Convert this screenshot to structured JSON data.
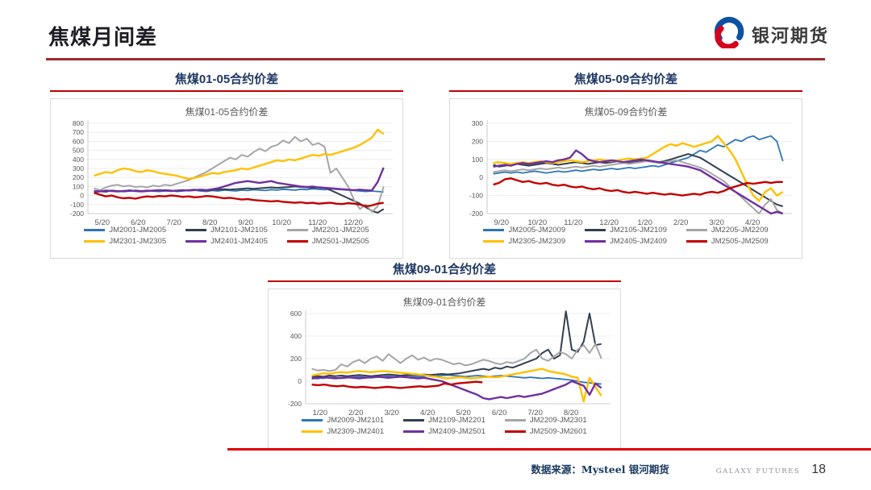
{
  "slide": {
    "title": "焦煤月间差",
    "logo_text": "银河期货",
    "footer": {
      "source": "数据来源：Mysteel 银河期货",
      "brand": "GALAXY FUTURES",
      "page": "18"
    },
    "colors": {
      "accent_red": "#c00000",
      "title_underline": "#9e2b2b",
      "footer_line": "#e00000",
      "header_navy": "#1f3864",
      "logo_blue": "#0c52a2",
      "logo_red": "#d6001c"
    }
  },
  "chart_data": [
    {
      "type": "line",
      "header": "焦煤01-05合约价差",
      "inner_title": "焦煤01-05合约价差",
      "x_ticks": [
        "5/20",
        "6/20",
        "7/20",
        "8/20",
        "9/20",
        "10/20",
        "11/20",
        "12/20"
      ],
      "y_min": -200,
      "y_max": 800,
      "y_step": 100,
      "grid": true,
      "legend_position": "bottom",
      "series": [
        {
          "name": "JM2001-JM2005",
          "color": "#2e75b6",
          "values": [
            30,
            45,
            40,
            55,
            50,
            45,
            60,
            50,
            45,
            55,
            50,
            45,
            50,
            55,
            45,
            50,
            55,
            60,
            50,
            45,
            55,
            50,
            60,
            55,
            50,
            60,
            55,
            65,
            60,
            55,
            65,
            60,
            70,
            65,
            60,
            70,
            65,
            75,
            70,
            65,
            75,
            70,
            65,
            60,
            55,
            50,
            45,
            50,
            45,
            40
          ]
        },
        {
          "name": "JM2101-JM2105",
          "color": "#333f50",
          "values": [
            40,
            50,
            45,
            55,
            50,
            45,
            50,
            55,
            50,
            55,
            50,
            55,
            60,
            55,
            50,
            55,
            60,
            65,
            60,
            55,
            60,
            65,
            70,
            65,
            70,
            75,
            80,
            75,
            80,
            85,
            90,
            85,
            90,
            95,
            100,
            95,
            90,
            85,
            90,
            85,
            60,
            30,
            0,
            -30,
            -60,
            -90,
            -130,
            -170,
            -190,
            -150
          ]
        },
        {
          "name": "JM2201-JM2205",
          "color": "#a6a6a6",
          "values": [
            80,
            60,
            90,
            110,
            120,
            100,
            110,
            95,
            100,
            90,
            110,
            100,
            120,
            110,
            130,
            150,
            170,
            200,
            230,
            260,
            300,
            340,
            380,
            420,
            400,
            450,
            430,
            480,
            520,
            490,
            540,
            560,
            610,
            580,
            650,
            600,
            630,
            560,
            580,
            540,
            250,
            300,
            200,
            100,
            -50,
            -150,
            -100,
            -180,
            -120,
            100
          ]
        },
        {
          "name": "JM2301-JM2305",
          "color": "#ffc000",
          "values": [
            220,
            240,
            260,
            250,
            280,
            300,
            290,
            270,
            260,
            280,
            270,
            250,
            240,
            230,
            220,
            200,
            185,
            195,
            210,
            230,
            250,
            240,
            260,
            270,
            280,
            300,
            290,
            310,
            330,
            350,
            370,
            390,
            380,
            400,
            390,
            410,
            430,
            450,
            440,
            460,
            450,
            470,
            490,
            510,
            530,
            560,
            600,
            640,
            730,
            680
          ]
        },
        {
          "name": "JM2401-JM2405",
          "color": "#7030a0",
          "values": [
            50,
            45,
            55,
            50,
            45,
            50,
            55,
            50,
            45,
            50,
            55,
            60,
            55,
            50,
            55,
            60,
            55,
            60,
            65,
            60,
            70,
            80,
            100,
            120,
            140,
            150,
            160,
            150,
            140,
            150,
            160,
            140,
            130,
            120,
            110,
            100,
            95,
            100,
            90,
            85,
            80,
            75,
            70,
            65,
            60,
            65,
            60,
            55,
            150,
            310
          ]
        },
        {
          "name": "JM2501-JM2505",
          "color": "#c00000",
          "values": [
            30,
            10,
            -10,
            0,
            -20,
            -30,
            -25,
            -35,
            -20,
            -10,
            -15,
            -5,
            -10,
            0,
            -5,
            -15,
            -10,
            -20,
            -15,
            -5,
            -10,
            -20,
            -30,
            -25,
            -35,
            -45,
            -40,
            -50,
            -55,
            -60,
            -65,
            -60,
            -70,
            -75,
            -80,
            -75,
            -85,
            -80,
            -90,
            -85,
            -80,
            -90,
            -95,
            -85,
            -90,
            -100,
            -120,
            -110,
            -90,
            -80
          ]
        }
      ]
    },
    {
      "type": "line",
      "header": "焦煤05-09合约价差",
      "inner_title": "焦煤05-09合约价差",
      "x_ticks": [
        "9/20",
        "10/20",
        "11/20",
        "12/20",
        "1/20",
        "2/20",
        "3/20",
        "4/20"
      ],
      "y_min": -200,
      "y_max": 300,
      "y_step": 100,
      "grid": true,
      "legend_position": "bottom",
      "series": [
        {
          "name": "JM2005-JM2009",
          "color": "#2e75b6",
          "values": [
            20,
            25,
            30,
            25,
            30,
            25,
            30,
            35,
            30,
            25,
            30,
            35,
            30,
            35,
            40,
            35,
            40,
            45,
            40,
            45,
            50,
            45,
            50,
            55,
            50,
            55,
            60,
            65,
            60,
            70,
            80,
            90,
            100,
            110,
            130,
            150,
            140,
            160,
            180,
            170,
            190,
            210,
            200,
            220,
            230,
            210,
            220,
            230,
            200,
            90
          ]
        },
        {
          "name": "JM2105-JM2109",
          "color": "#333f50",
          "values": [
            70,
            60,
            65,
            70,
            75,
            70,
            65,
            70,
            75,
            80,
            75,
            70,
            75,
            80,
            85,
            80,
            75,
            80,
            85,
            80,
            85,
            90,
            85,
            80,
            85,
            90,
            95,
            90,
            85,
            90,
            100,
            110,
            120,
            130,
            120,
            110,
            90,
            70,
            50,
            30,
            10,
            -10,
            -30,
            -50,
            -70,
            -90,
            -110,
            -130,
            -150,
            -160
          ]
        },
        {
          "name": "JM2205-JM2209",
          "color": "#a6a6a6",
          "values": [
            30,
            35,
            40,
            35,
            40,
            45,
            40,
            45,
            50,
            45,
            50,
            55,
            50,
            55,
            60,
            55,
            60,
            65,
            60,
            65,
            70,
            75,
            80,
            75,
            80,
            85,
            90,
            85,
            80,
            85,
            90,
            95,
            85,
            75,
            65,
            55,
            40,
            20,
            0,
            -20,
            -50,
            -80,
            -110,
            -140,
            -170,
            -200,
            -150,
            -120,
            -180,
            -200
          ]
        },
        {
          "name": "JM2305-JM2309",
          "color": "#ffc000",
          "values": [
            80,
            85,
            80,
            75,
            80,
            85,
            80,
            85,
            90,
            85,
            80,
            85,
            90,
            95,
            90,
            85,
            90,
            95,
            100,
            95,
            90,
            95,
            100,
            105,
            100,
            105,
            110,
            130,
            150,
            170,
            185,
            175,
            190,
            180,
            170,
            180,
            190,
            200,
            230,
            190,
            150,
            100,
            30,
            -40,
            -100,
            -130,
            -80,
            -60,
            -100,
            -80
          ]
        },
        {
          "name": "JM2405-JM2409",
          "color": "#7030a0",
          "values": [
            60,
            65,
            70,
            65,
            75,
            80,
            75,
            80,
            85,
            90,
            85,
            95,
            100,
            110,
            150,
            130,
            100,
            90,
            85,
            90,
            95,
            90,
            85,
            90,
            95,
            100,
            95,
            90,
            85,
            80,
            75,
            70,
            65,
            60,
            50,
            40,
            20,
            0,
            -20,
            -40,
            -60,
            -80,
            -100,
            -120,
            -140,
            -160,
            -180,
            -200,
            -190,
            -200
          ]
        },
        {
          "name": "JM2505-JM2509",
          "color": "#c00000",
          "values": [
            -40,
            -30,
            -10,
            -5,
            -15,
            -25,
            -20,
            -30,
            -35,
            -30,
            -40,
            -45,
            -40,
            -50,
            -55,
            -50,
            -60,
            -65,
            -60,
            -70,
            -75,
            -70,
            -80,
            -85,
            -80,
            -85,
            -90,
            -85,
            -90,
            -95,
            -90,
            -95,
            -100,
            -95,
            -90,
            -95,
            -85,
            -80,
            -85,
            -75,
            -60,
            -50,
            -40,
            -30,
            -35,
            -30,
            -25,
            -30,
            -25,
            -25
          ]
        }
      ]
    },
    {
      "type": "line",
      "header": "焦煤09-01合约价差",
      "inner_title": "焦煤09-01合约价差",
      "x_ticks": [
        "1/20",
        "2/20",
        "3/20",
        "4/20",
        "5/20",
        "6/20",
        "7/20",
        "8/20"
      ],
      "y_min": -200,
      "y_max": 600,
      "y_step": 200,
      "grid": true,
      "legend_position": "bottom",
      "series": [
        {
          "name": "JM2009-JM2101",
          "color": "#2e75b6",
          "values": [
            20,
            30,
            25,
            35,
            30,
            25,
            30,
            35,
            40,
            35,
            30,
            35,
            40,
            45,
            40,
            45,
            50,
            45,
            40,
            45,
            50,
            45,
            50,
            55,
            50,
            45,
            40,
            45,
            50,
            45,
            40,
            45,
            50,
            45,
            40,
            35,
            30,
            35,
            30,
            25,
            30,
            25,
            20,
            15,
            10,
            0,
            -10,
            -15,
            -20,
            -25
          ]
        },
        {
          "name": "JM2109-JM2201",
          "color": "#333f50",
          "values": [
            40,
            45,
            40,
            50,
            45,
            50,
            45,
            50,
            55,
            50,
            45,
            50,
            55,
            60,
            55,
            50,
            55,
            60,
            55,
            60,
            55,
            60,
            65,
            60,
            65,
            70,
            80,
            90,
            100,
            110,
            100,
            120,
            110,
            130,
            120,
            140,
            160,
            180,
            200,
            250,
            280,
            200,
            230,
            620,
            280,
            260,
            350,
            600,
            320,
            330
          ]
        },
        {
          "name": "JM2209-JM2301",
          "color": "#a6a6a6",
          "values": [
            110,
            95,
            100,
            90,
            100,
            150,
            130,
            170,
            190,
            160,
            200,
            220,
            180,
            240,
            200,
            160,
            200,
            230,
            190,
            210,
            180,
            200,
            190,
            170,
            150,
            160,
            140,
            150,
            170,
            190,
            180,
            160,
            150,
            170,
            160,
            180,
            200,
            250,
            280,
            200,
            180,
            220,
            260,
            240,
            200,
            280,
            320,
            250,
            330,
            200
          ]
        },
        {
          "name": "JM2309-JM2401",
          "color": "#ffc000",
          "values": [
            50,
            60,
            70,
            65,
            75,
            80,
            75,
            85,
            90,
            85,
            80,
            85,
            90,
            85,
            80,
            75,
            70,
            65,
            60,
            55,
            45,
            40,
            30,
            25,
            30,
            35,
            30,
            25,
            30,
            35,
            40,
            35,
            40,
            50,
            60,
            70,
            80,
            90,
            100,
            110,
            90,
            80,
            70,
            60,
            40,
            30,
            -180,
            30,
            -50,
            -130
          ]
        },
        {
          "name": "JM2409-JM2501",
          "color": "#7030a0",
          "values": [
            30,
            25,
            35,
            30,
            25,
            30,
            35,
            30,
            25,
            30,
            35,
            40,
            35,
            30,
            35,
            40,
            35,
            30,
            25,
            30,
            20,
            10,
            0,
            -20,
            -40,
            -60,
            -80,
            -100,
            -120,
            -150,
            -160,
            -150,
            -140,
            -150,
            -140,
            -130,
            -140,
            -130,
            -120,
            -110,
            -90,
            -70,
            -50,
            -30,
            0,
            -20,
            -40,
            -120,
            -20,
            -60
          ]
        },
        {
          "name": "JM2509-JM2601",
          "color": "#c00000",
          "span": [
            0.02,
            0.58
          ],
          "values": [
            -30,
            -35,
            -30,
            -40,
            -45,
            -40,
            -50,
            -55,
            -50,
            -55,
            -60,
            -55,
            -50,
            -55,
            -60,
            -55,
            -50,
            -45,
            -50,
            -45,
            -40,
            -20,
            -30,
            -20,
            -15,
            -10,
            -5,
            -10
          ]
        }
      ]
    }
  ]
}
